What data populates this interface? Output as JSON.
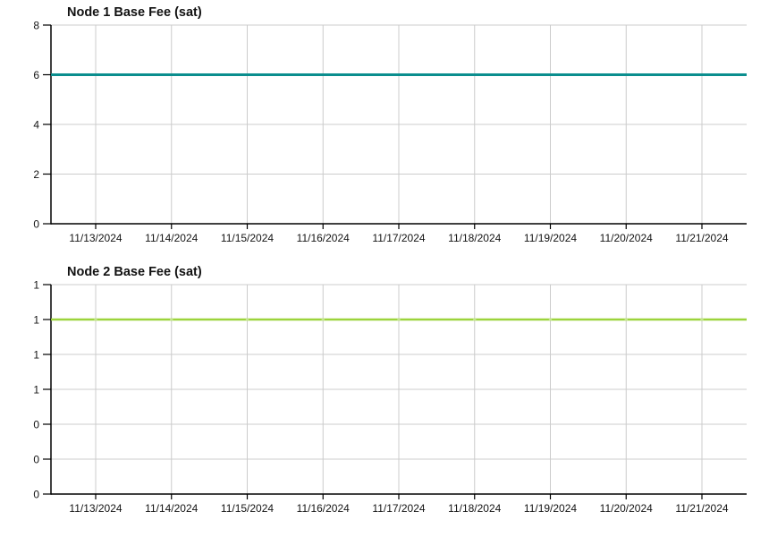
{
  "page": {
    "background_color": "#ffffff",
    "axis_color": "#000000",
    "grid_color": "#cccccc",
    "text_color": "#141414"
  },
  "chart_data": [
    {
      "type": "line",
      "title": "Node 1 Base Fee (sat)",
      "xlabel": "",
      "ylabel": "",
      "x_labels": [
        "11/13/2024",
        "11/14/2024",
        "11/15/2024",
        "11/16/2024",
        "11/17/2024",
        "11/18/2024",
        "11/19/2024",
        "11/20/2024",
        "11/21/2024"
      ],
      "series": [
        {
          "name": "Node 1 Base Fee",
          "color": "#0b8e8e",
          "line_width": 3,
          "markers": false,
          "values": [
            6,
            6,
            6,
            6,
            6,
            6,
            6,
            6,
            6
          ]
        }
      ],
      "ylim": [
        0,
        8
      ],
      "yticks": [
        0,
        2,
        4,
        6,
        8
      ],
      "ytick_labels": [
        "0",
        "2",
        "4",
        "6",
        "8"
      ],
      "grid": true,
      "legend_position": "none"
    },
    {
      "type": "line",
      "title": "Node 2 Base Fee (sat)",
      "xlabel": "",
      "ylabel": "",
      "x_labels": [
        "11/13/2024",
        "11/14/2024",
        "11/15/2024",
        "11/16/2024",
        "11/17/2024",
        "11/18/2024",
        "11/19/2024",
        "11/20/2024",
        "11/21/2024"
      ],
      "series": [
        {
          "name": "Node 2 Base Fee",
          "color": "#9cd43c",
          "marker_color": "#c3e38d",
          "line_width": 2.5,
          "markers": true,
          "values": [
            1,
            1,
            1,
            1,
            1,
            1,
            1,
            1,
            1
          ]
        }
      ],
      "ylim": [
        0,
        1.2
      ],
      "yticks": [
        0,
        0.2,
        0.4,
        0.6,
        0.8,
        1.0,
        1.2
      ],
      "ytick_labels": [
        "0",
        "0",
        "0",
        "1",
        "1",
        "1",
        "1"
      ],
      "grid": true,
      "legend_position": "none"
    }
  ]
}
